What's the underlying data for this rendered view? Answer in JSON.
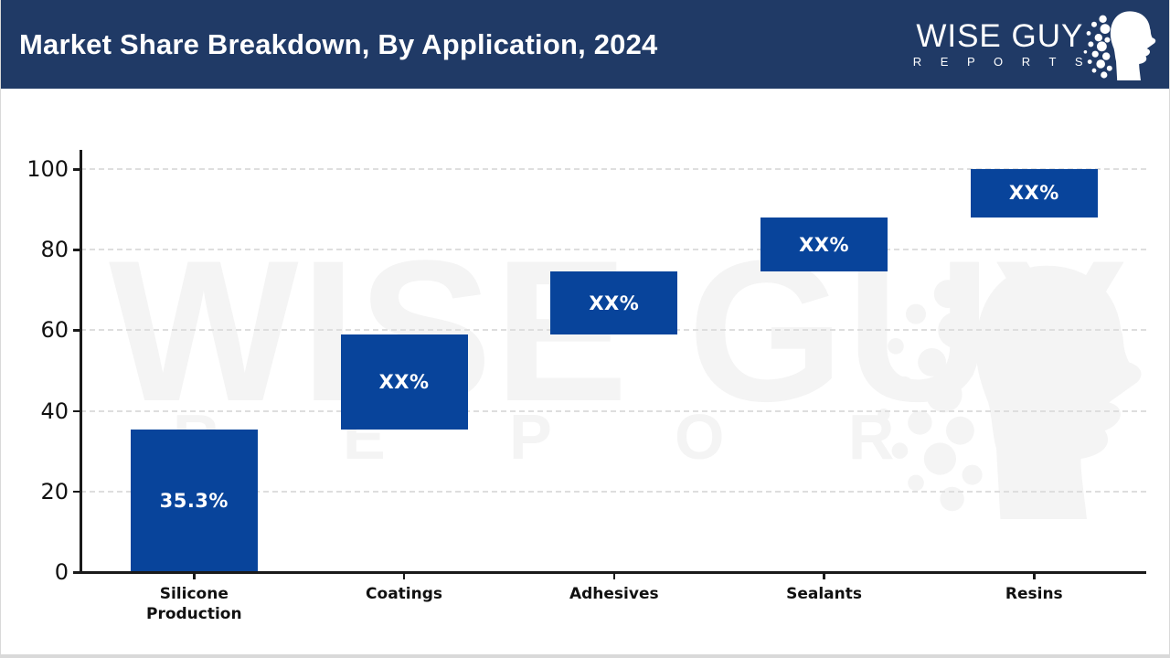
{
  "page": {
    "background": "#ffffff",
    "border_color": "#d9d9d9"
  },
  "header": {
    "background": "#203a66",
    "title": "Market Share Breakdown, By Application, 2024",
    "title_color": "#ffffff",
    "logo": {
      "line1": "WISE GUY",
      "line2": "R E P O R T S",
      "head_icon": "dotted-profile-head"
    }
  },
  "watermark": {
    "line1": "WISE GUY",
    "line2": "R E P O R T S",
    "head_icon": "dotted-profile-head",
    "color": "#f4f4f4"
  },
  "chart_data": {
    "type": "bar",
    "subtype": "waterfall",
    "title": "Market Share Breakdown, By Application, 2024",
    "categories": [
      "Silicone\nProduction",
      "Coatings",
      "Adhesives",
      "Sealants",
      "Resins"
    ],
    "segments": [
      {
        "category": "Silicone Production",
        "start": 0,
        "end": 35.3,
        "label": "35.3%"
      },
      {
        "category": "Coatings",
        "start": 35.3,
        "end": 59,
        "label": "XX%"
      },
      {
        "category": "Adhesives",
        "start": 59,
        "end": 74.5,
        "label": "XX%"
      },
      {
        "category": "Sealants",
        "start": 74.5,
        "end": 88,
        "label": "XX%"
      },
      {
        "category": "Resins",
        "start": 88,
        "end": 100,
        "label": "XX%"
      }
    ],
    "y_ticks": [
      0,
      20,
      40,
      60,
      80,
      100
    ],
    "ylim": [
      0,
      105
    ],
    "xlabel": "",
    "ylabel": "",
    "bar_color": "#08449b",
    "bar_label_color": "#ffffff",
    "axis_color": "#1a1a1a",
    "grid": {
      "axis": "y",
      "style": "dashed",
      "color": "#dedede"
    },
    "legend": "none"
  }
}
